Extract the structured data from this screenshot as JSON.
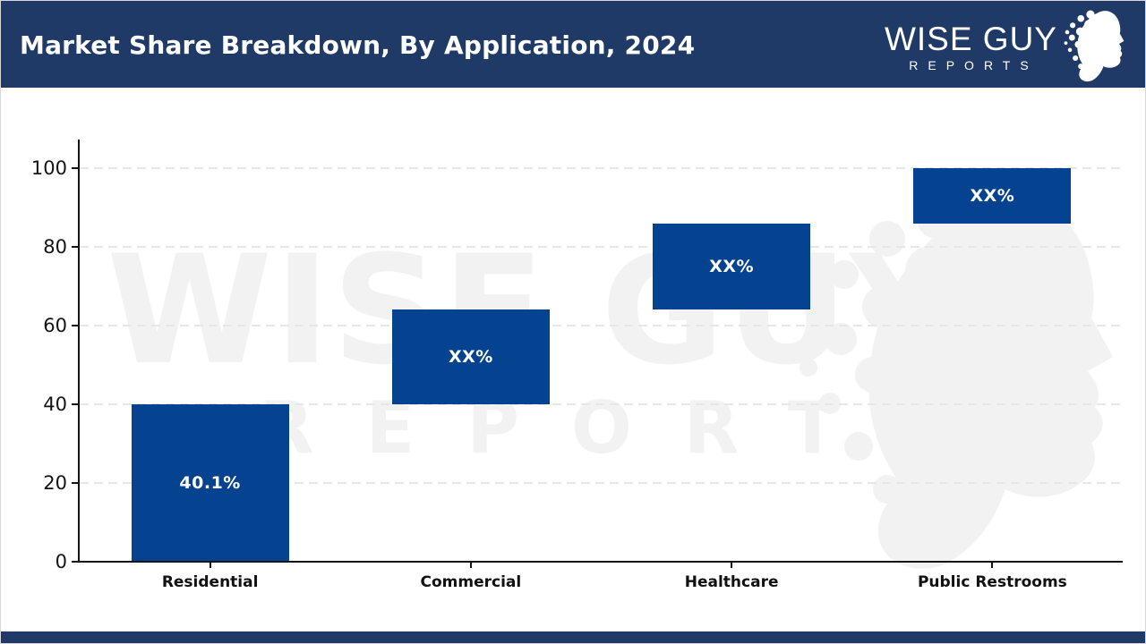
{
  "header": {
    "title": "Market Share Breakdown, By Application, 2024",
    "logo": {
      "line1": "WISE GUY",
      "line2": "REPORTS"
    }
  },
  "watermark": {
    "line1": "WISE GUY",
    "line2": "REPORTS"
  },
  "colors": {
    "header_navy": "#1f3a66",
    "bar_blue": "#05428f",
    "grid_gray": "#e7e7e7",
    "watermark_gray": "#f2f2f2",
    "axis_black": "#141414",
    "label_white": "#ffffff"
  },
  "chart_data": {
    "type": "bar",
    "subtype": "waterfall",
    "title": "Market Share Breakdown, By Application, 2024",
    "categories": [
      "Residential",
      "Commercial",
      "Healthcare",
      "Public Restrooms"
    ],
    "segments": [
      {
        "category": "Residential",
        "start": 0,
        "end": 40.1,
        "value": 40.1,
        "label": "40.1%"
      },
      {
        "category": "Commercial",
        "start": 40.1,
        "end": 64.0,
        "value": 23.9,
        "label": "XX%"
      },
      {
        "category": "Healthcare",
        "start": 64.0,
        "end": 85.9,
        "value": 21.9,
        "label": "XX%"
      },
      {
        "category": "Public Restrooms",
        "start": 85.9,
        "end": 100,
        "value": 14.1,
        "label": "XX%"
      }
    ],
    "xlabel": "",
    "ylabel": "",
    "ylim": [
      0,
      105
    ],
    "yticks": [
      0,
      20,
      40,
      60,
      80,
      100
    ],
    "grid": "horizontal-dashed",
    "legend": "none",
    "bar_color": "#05428f",
    "bar_label_color": "#ffffff"
  }
}
